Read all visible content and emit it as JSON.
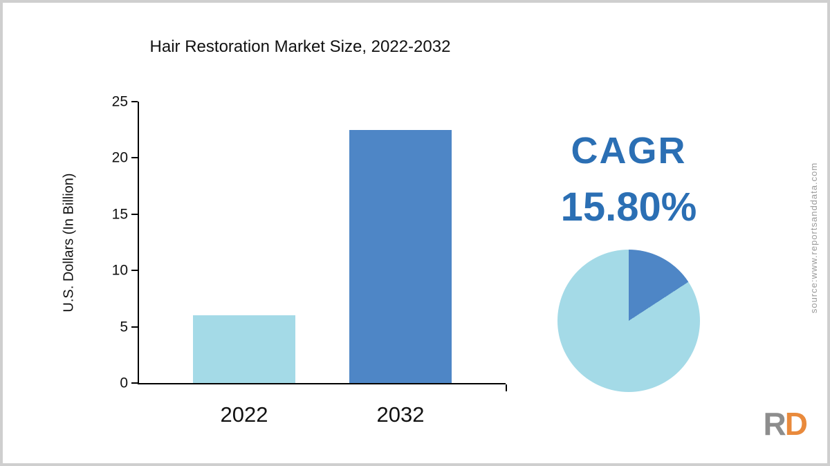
{
  "title": "Hair Restoration Market Size, 2022-2032",
  "chart_data": {
    "type": "bar",
    "title": "Hair Restoration Market Size, 2022-2032",
    "categories": [
      "2022",
      "2032"
    ],
    "values": [
      6,
      22.5
    ],
    "xlabel": "",
    "ylabel": "U.S. Dollars (In Billion)",
    "ylim": [
      0,
      25
    ],
    "yticks": [
      0,
      5,
      10,
      15,
      20,
      25
    ],
    "bar_colors": [
      "#a4dae7",
      "#4e86c6"
    ],
    "grid": false,
    "legend": "none"
  },
  "cagr": {
    "label": "CAGR",
    "value": "15.80%",
    "percent": 15.8,
    "text_color": "#2b6fb4"
  },
  "pie": {
    "slice_percent": 15.8,
    "slice_color": "#4e86c6",
    "remainder_color": "#a4dae7"
  },
  "source_note": "source:www.reportsanddata.com",
  "logo": {
    "r": "R",
    "d": "D"
  }
}
